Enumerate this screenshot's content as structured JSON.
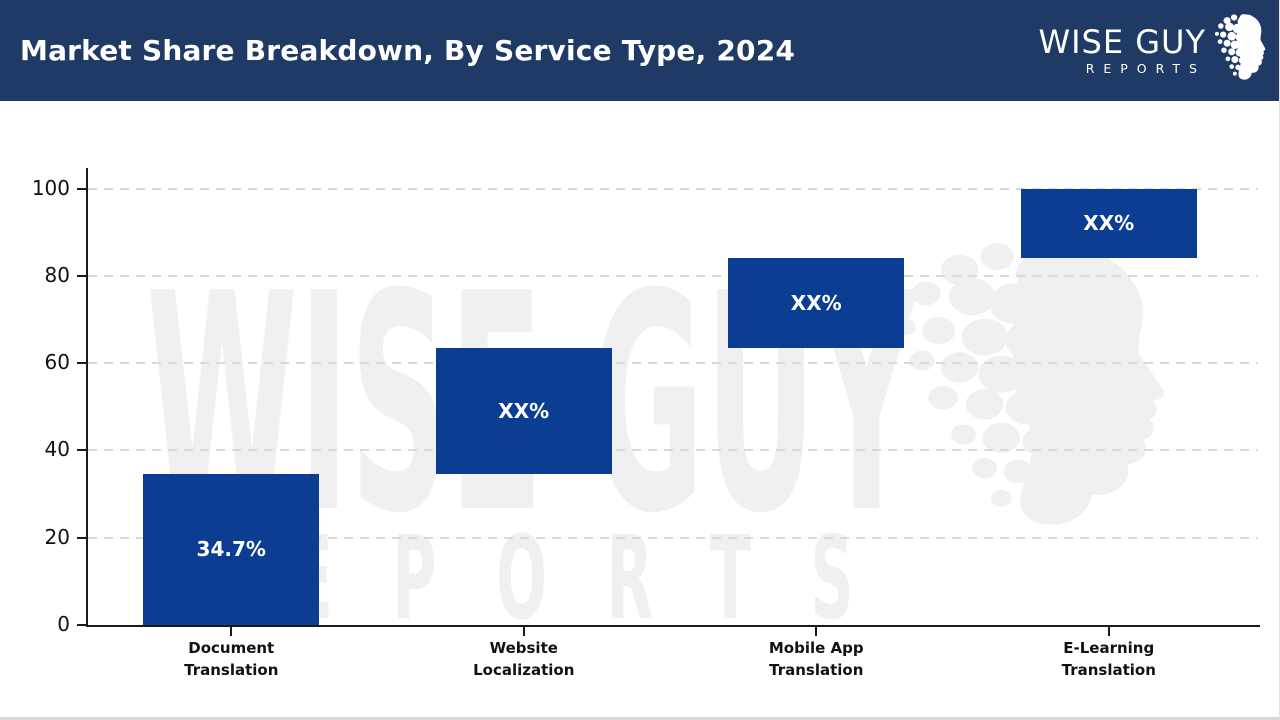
{
  "header": {
    "title": "Market Share Breakdown, By Service Type, 2024",
    "logo": {
      "brand": "WISE GUY",
      "sub": "REPORTS"
    }
  },
  "watermark": {
    "brand": "WISE GUY",
    "sub": "REPORTS"
  },
  "chart_data": {
    "type": "bar",
    "subtype": "waterfall",
    "title": "Market Share Breakdown, By Service Type, 2024",
    "categories": [
      "Document\nTranslation",
      "Website\nLocalization",
      "Mobile App\nTranslation",
      "E-Learning\nTranslation"
    ],
    "series": [
      {
        "name": "Market share (%)",
        "segments": [
          {
            "category": "Document Translation",
            "start": 0,
            "end": 34.7,
            "label": "34.7%"
          },
          {
            "category": "Website Localization",
            "start": 34.7,
            "end": 63.5,
            "label": "XX%"
          },
          {
            "category": "Mobile App Translation",
            "start": 63.5,
            "end": 84.0,
            "label": "XX%"
          },
          {
            "category": "E-Learning Translation",
            "start": 84.0,
            "end": 100.0,
            "label": "XX%"
          }
        ]
      }
    ],
    "yticks": [
      0,
      20,
      40,
      60,
      80,
      100
    ],
    "ylim": [
      0,
      104.7
    ],
    "xlabel": "",
    "ylabel": "",
    "grid": true,
    "legend": false,
    "bar_color": "#0b3e92",
    "bar_label_color": "#ffffff"
  },
  "colors": {
    "header_bg": "#203a66",
    "bar": "#0b3e92",
    "gridline": "#d9d9d9",
    "watermark": "#f0f0f3"
  }
}
